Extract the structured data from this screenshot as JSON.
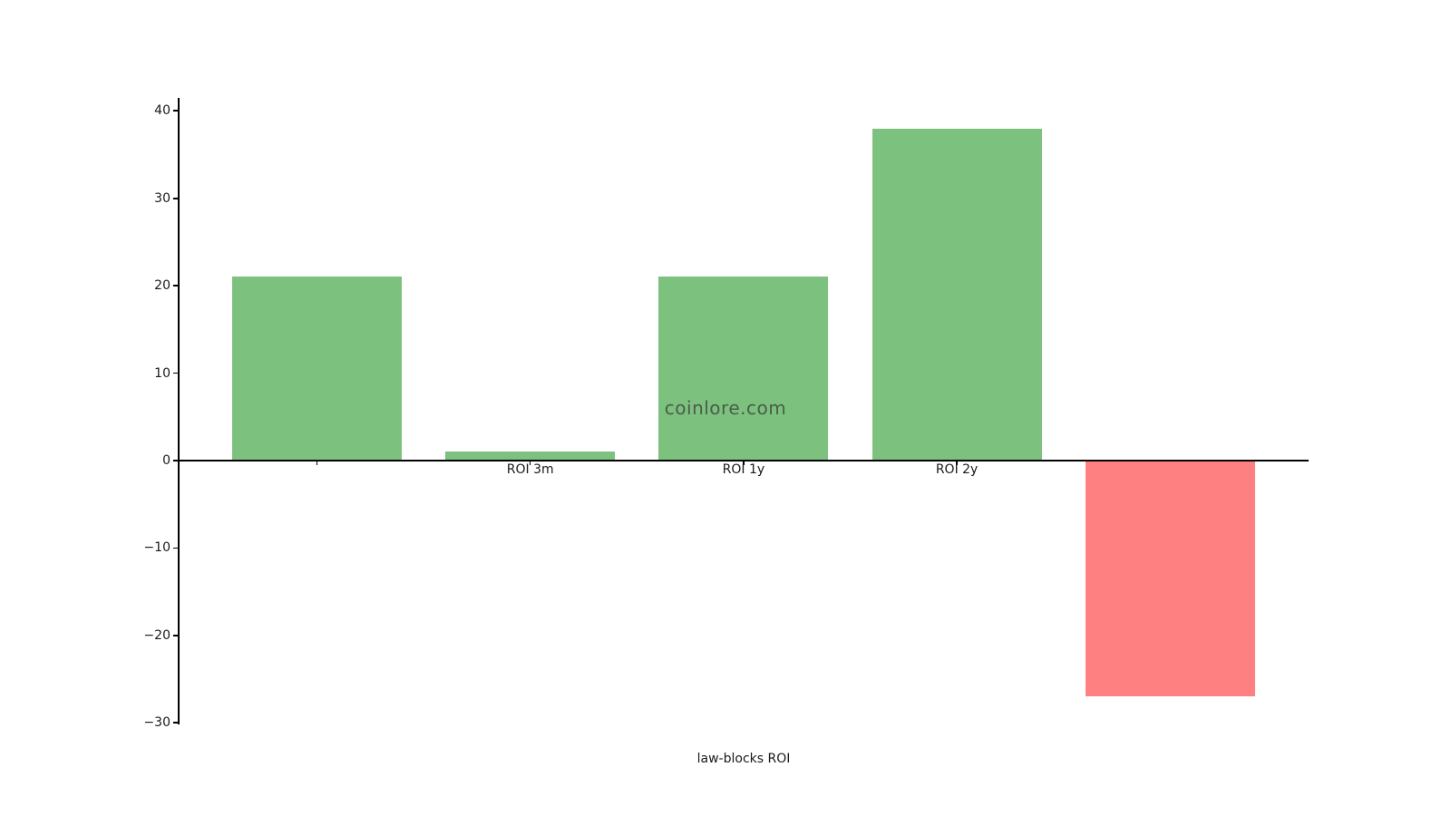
{
  "page": {
    "background_color": "#ffffff"
  },
  "watermark": "coinlore.com",
  "chart_data": {
    "type": "bar",
    "title": "",
    "xlabel": "law-blocks ROI",
    "ylabel": "",
    "categories": [
      "",
      "ROI 3m",
      "ROI 1y",
      "ROI 2y",
      ""
    ],
    "values": [
      21,
      1,
      21,
      38,
      -27
    ],
    "bar_colors": [
      "#7dc17f",
      "#7dc17f",
      "#7dc17f",
      "#7dc17f",
      "#ff8080"
    ],
    "positive_color": "#7dc17f",
    "negative_color": "#ff8080",
    "yticks": [
      40,
      30,
      20,
      10,
      0,
      -10,
      -20,
      -30
    ],
    "ytick_labels": [
      "40",
      "30",
      "20",
      "10",
      "0",
      "−10",
      "−20",
      "−30"
    ],
    "ylim": [
      -30.25,
      41.4
    ],
    "grid": false,
    "legend": null,
    "axis_color": "#000000",
    "tick_text_color": "#1a1a1a"
  }
}
